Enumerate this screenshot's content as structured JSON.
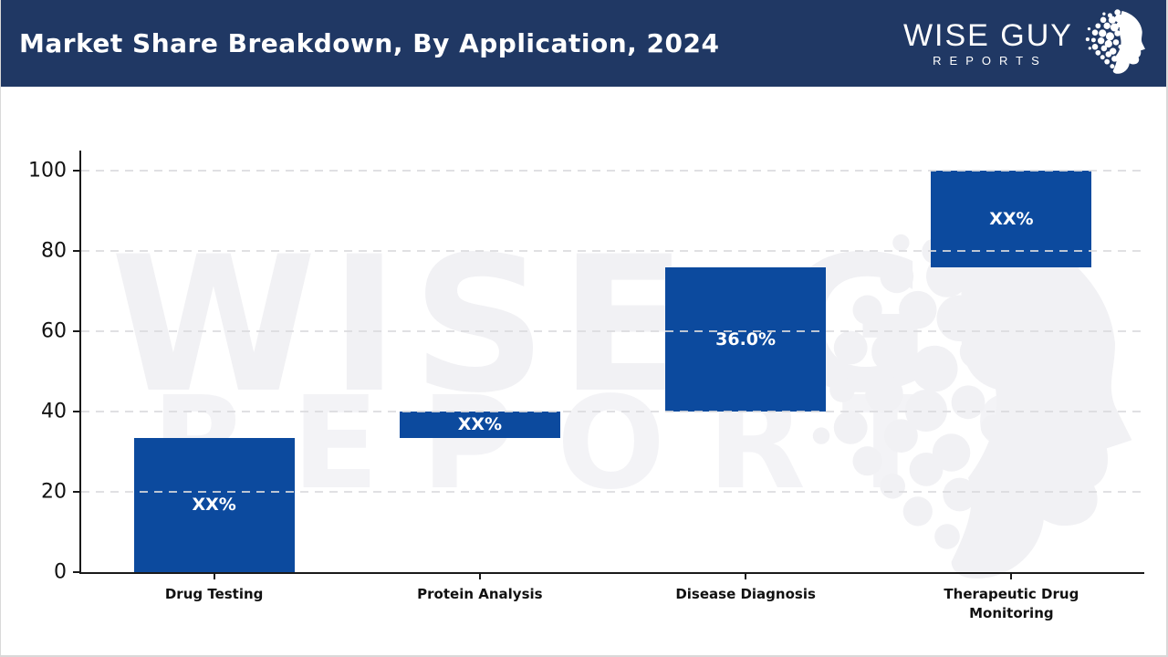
{
  "header": {
    "title": "Market Share Breakdown, By Application, 2024",
    "logo": {
      "line1": "WISE GUY",
      "line2": "REPORTS"
    }
  },
  "watermark": {
    "line1": "WISE GU",
    "line2": "REPORTS"
  },
  "chart_data": {
    "type": "bar",
    "subtype": "waterfall",
    "title": "Market Share Breakdown, By Application, 2024",
    "categories": [
      "Drug Testing",
      "Protein Analysis",
      "Disease Diagnosis",
      "Therapeutic Drug Monitoring"
    ],
    "segments": [
      {
        "category": "Drug Testing",
        "start": 0,
        "end": 33.5,
        "label": "XX%"
      },
      {
        "category": "Protein Analysis",
        "start": 33.5,
        "end": 40,
        "label": "XX%"
      },
      {
        "category": "Disease Diagnosis",
        "start": 40,
        "end": 76,
        "label": "36.0%"
      },
      {
        "category": "Therapeutic Drug Monitoring",
        "start": 76,
        "end": 100,
        "label": "XX%"
      }
    ],
    "yticks": [
      0,
      20,
      40,
      60,
      80,
      100
    ],
    "ylim": [
      0,
      105
    ],
    "xlabel": "",
    "ylabel": "",
    "grid": "horizontal-dashed",
    "legend": "none",
    "bar_color": "#0c4a9e",
    "bar_label_color": "#ffffff"
  },
  "colors": {
    "header_bg": "#203864",
    "grid": "#dbdbde",
    "axis": "#1a1a1a",
    "watermark": "#f1f1f4"
  }
}
